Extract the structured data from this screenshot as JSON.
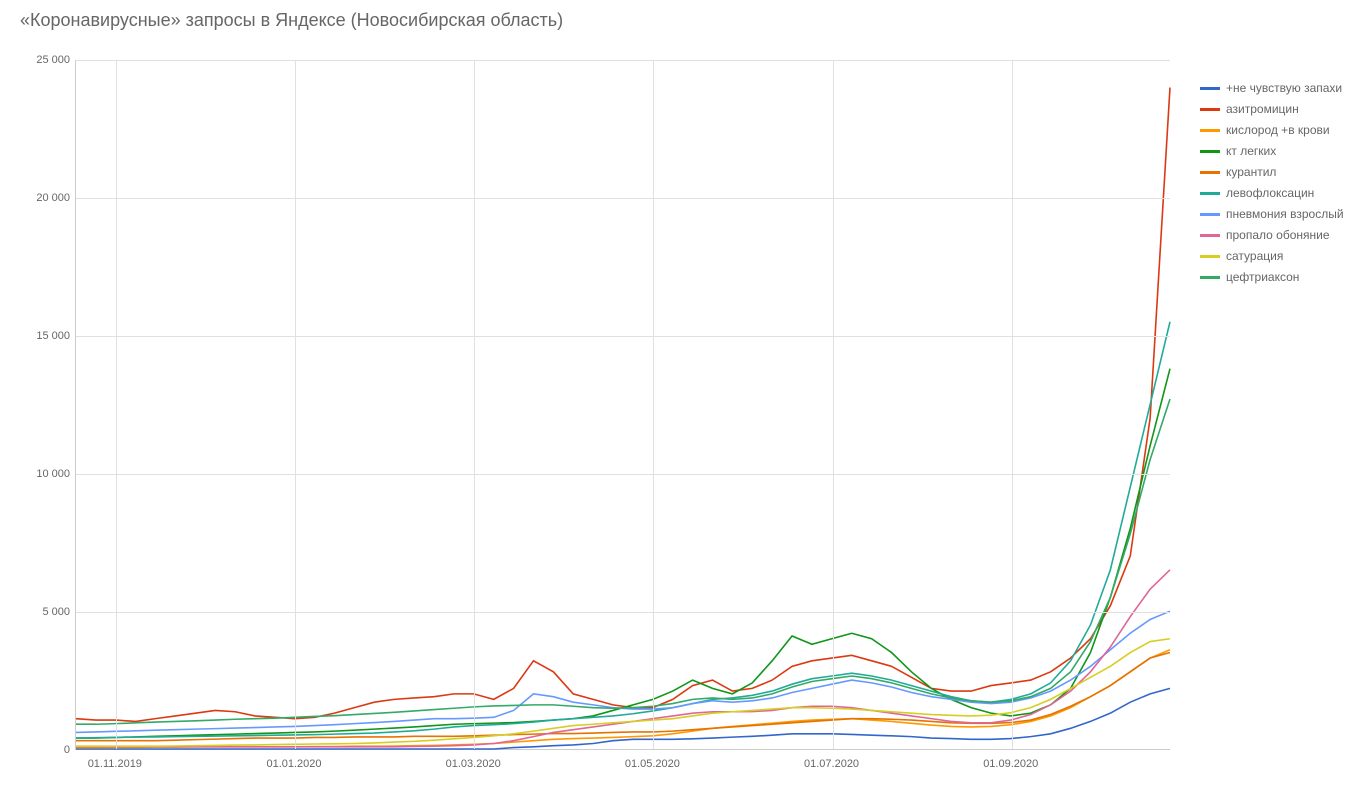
{
  "chart": {
    "type": "line",
    "title": "«Коронавирусные» запросы в Яндексе (Новосибирская область)",
    "title_fontsize": 18,
    "title_color": "#666666",
    "background_color": "#ffffff",
    "grid_color": "#e0e0e0",
    "axis_color": "#cccccc",
    "tick_color": "#666666",
    "tick_fontsize": 11,
    "line_width": 1.6,
    "ylim": [
      0,
      25000
    ],
    "ytick_step": 5000,
    "y_ticks": [
      "0",
      "5 000",
      "10 000",
      "15 000",
      "20 000",
      "25 000"
    ],
    "x_count": 56,
    "x_ticks": [
      {
        "index": 2,
        "label": "01.11.2019"
      },
      {
        "index": 11,
        "label": "01.01.2020"
      },
      {
        "index": 20,
        "label": "01.03.2020"
      },
      {
        "index": 29,
        "label": "01.05.2020"
      },
      {
        "index": 38,
        "label": "01.07.2020"
      },
      {
        "index": 47,
        "label": "01.09.2020"
      }
    ],
    "series": [
      {
        "name": "+не чувствую запахи",
        "color": "#3366cc",
        "values": [
          0,
          0,
          0,
          0,
          0,
          0,
          0,
          0,
          0,
          0,
          0,
          0,
          0,
          0,
          0,
          0,
          0,
          0,
          0,
          0,
          0,
          0,
          50,
          80,
          120,
          150,
          200,
          300,
          350,
          350,
          350,
          370,
          400,
          430,
          460,
          500,
          550,
          550,
          550,
          530,
          500,
          480,
          450,
          400,
          380,
          350,
          350,
          380,
          450,
          550,
          750,
          1000,
          1300,
          1700,
          2000,
          2200
        ]
      },
      {
        "name": "азитромицин",
        "color": "#dc3912",
        "values": [
          1100,
          1050,
          1050,
          1000,
          1100,
          1200,
          1300,
          1400,
          1350,
          1200,
          1150,
          1100,
          1150,
          1300,
          1500,
          1700,
          1800,
          1850,
          1900,
          2000,
          2000,
          1800,
          2200,
          3200,
          2800,
          2000,
          1800,
          1600,
          1500,
          1500,
          1800,
          2300,
          2500,
          2100,
          2200,
          2500,
          3000,
          3200,
          3300,
          3400,
          3200,
          3000,
          2600,
          2200,
          2100,
          2100,
          2300,
          2400,
          2500,
          2800,
          3300,
          4000,
          5200,
          7000,
          12000,
          24000
        ]
      },
      {
        "name": "кислород +в крови",
        "color": "#ff9900",
        "values": [
          50,
          50,
          60,
          60,
          70,
          70,
          80,
          80,
          80,
          80,
          80,
          80,
          90,
          90,
          100,
          100,
          110,
          120,
          130,
          150,
          170,
          200,
          250,
          300,
          350,
          380,
          400,
          420,
          450,
          480,
          550,
          650,
          750,
          820,
          880,
          940,
          1000,
          1050,
          1080,
          1100,
          1050,
          1000,
          930,
          870,
          820,
          800,
          820,
          880,
          1000,
          1200,
          1500,
          1900,
          2300,
          2800,
          3300,
          3600
        ]
      },
      {
        "name": "кт легких",
        "color": "#109618",
        "values": [
          400,
          400,
          420,
          440,
          460,
          480,
          500,
          520,
          540,
          560,
          580,
          600,
          620,
          650,
          680,
          720,
          760,
          800,
          850,
          900,
          920,
          940,
          960,
          1000,
          1050,
          1100,
          1200,
          1400,
          1600,
          1800,
          2100,
          2500,
          2200,
          2000,
          2400,
          3200,
          4100,
          3800,
          4000,
          4200,
          4000,
          3500,
          2800,
          2200,
          1800,
          1500,
          1300,
          1200,
          1300,
          1600,
          2200,
          3500,
          5500,
          8000,
          11000,
          13800
        ]
      },
      {
        "name": "курантил",
        "color": "#e67300",
        "values": [
          300,
          300,
          300,
          300,
          300,
          320,
          340,
          360,
          380,
          400,
          400,
          400,
          420,
          420,
          440,
          440,
          440,
          460,
          460,
          460,
          480,
          500,
          520,
          540,
          560,
          560,
          580,
          600,
          620,
          620,
          650,
          700,
          750,
          800,
          850,
          900,
          950,
          1000,
          1050,
          1100,
          1100,
          1080,
          1050,
          1000,
          950,
          930,
          930,
          960,
          1050,
          1250,
          1550,
          1900,
          2300,
          2800,
          3300,
          3500
        ]
      },
      {
        "name": "левофлоксацин",
        "color": "#22aa99",
        "values": [
          400,
          410,
          420,
          430,
          440,
          450,
          460,
          470,
          480,
          490,
          500,
          510,
          520,
          540,
          560,
          580,
          620,
          660,
          720,
          800,
          850,
          880,
          920,
          980,
          1050,
          1100,
          1150,
          1200,
          1280,
          1380,
          1500,
          1650,
          1800,
          1850,
          1950,
          2100,
          2350,
          2550,
          2650,
          2750,
          2650,
          2500,
          2300,
          2100,
          1900,
          1750,
          1700,
          1800,
          2000,
          2400,
          3200,
          4500,
          6500,
          9500,
          12500,
          15500
        ]
      },
      {
        "name": "пневмония взрослый",
        "color": "#6699ff",
        "values": [
          600,
          620,
          640,
          660,
          680,
          700,
          720,
          740,
          760,
          780,
          800,
          820,
          850,
          880,
          920,
          960,
          1000,
          1050,
          1100,
          1100,
          1120,
          1150,
          1400,
          2000,
          1900,
          1700,
          1600,
          1500,
          1450,
          1450,
          1500,
          1650,
          1750,
          1700,
          1750,
          1850,
          2050,
          2200,
          2350,
          2500,
          2400,
          2250,
          2050,
          1900,
          1800,
          1700,
          1650,
          1700,
          1850,
          2100,
          2500,
          3000,
          3600,
          4200,
          4700,
          5000
        ]
      },
      {
        "name": "пропало обоняние",
        "color": "#e06699",
        "values": [
          80,
          80,
          80,
          80,
          80,
          80,
          80,
          80,
          80,
          80,
          80,
          80,
          80,
          80,
          80,
          80,
          80,
          90,
          100,
          120,
          150,
          200,
          300,
          450,
          600,
          700,
          800,
          900,
          1000,
          1100,
          1200,
          1300,
          1350,
          1350,
          1360,
          1400,
          1500,
          1550,
          1550,
          1500,
          1400,
          1300,
          1200,
          1100,
          1000,
          950,
          950,
          1050,
          1250,
          1600,
          2100,
          2800,
          3700,
          4800,
          5800,
          6500
        ]
      },
      {
        "name": "сатурация",
        "color": "#d6ce22",
        "values": [
          100,
          100,
          100,
          100,
          100,
          110,
          120,
          130,
          140,
          150,
          160,
          170,
          180,
          190,
          200,
          220,
          250,
          280,
          320,
          370,
          420,
          480,
          550,
          650,
          750,
          850,
          900,
          950,
          1000,
          1050,
          1100,
          1200,
          1300,
          1350,
          1400,
          1450,
          1500,
          1500,
          1480,
          1450,
          1400,
          1350,
          1300,
          1250,
          1220,
          1200,
          1230,
          1320,
          1500,
          1800,
          2200,
          2600,
          3000,
          3500,
          3900,
          4000
        ]
      },
      {
        "name": "цефтриаксон",
        "color": "#33aa66",
        "values": [
          900,
          900,
          920,
          950,
          980,
          1000,
          1020,
          1050,
          1080,
          1100,
          1120,
          1150,
          1180,
          1210,
          1250,
          1290,
          1330,
          1380,
          1430,
          1480,
          1530,
          1560,
          1580,
          1600,
          1600,
          1550,
          1500,
          1480,
          1500,
          1550,
          1650,
          1800,
          1850,
          1800,
          1850,
          2000,
          2250,
          2450,
          2550,
          2650,
          2550,
          2400,
          2200,
          2000,
          1850,
          1750,
          1700,
          1750,
          1900,
          2200,
          2800,
          3900,
          5500,
          7800,
          10500,
          12700
        ]
      }
    ]
  },
  "legend_fontsize": 12
}
